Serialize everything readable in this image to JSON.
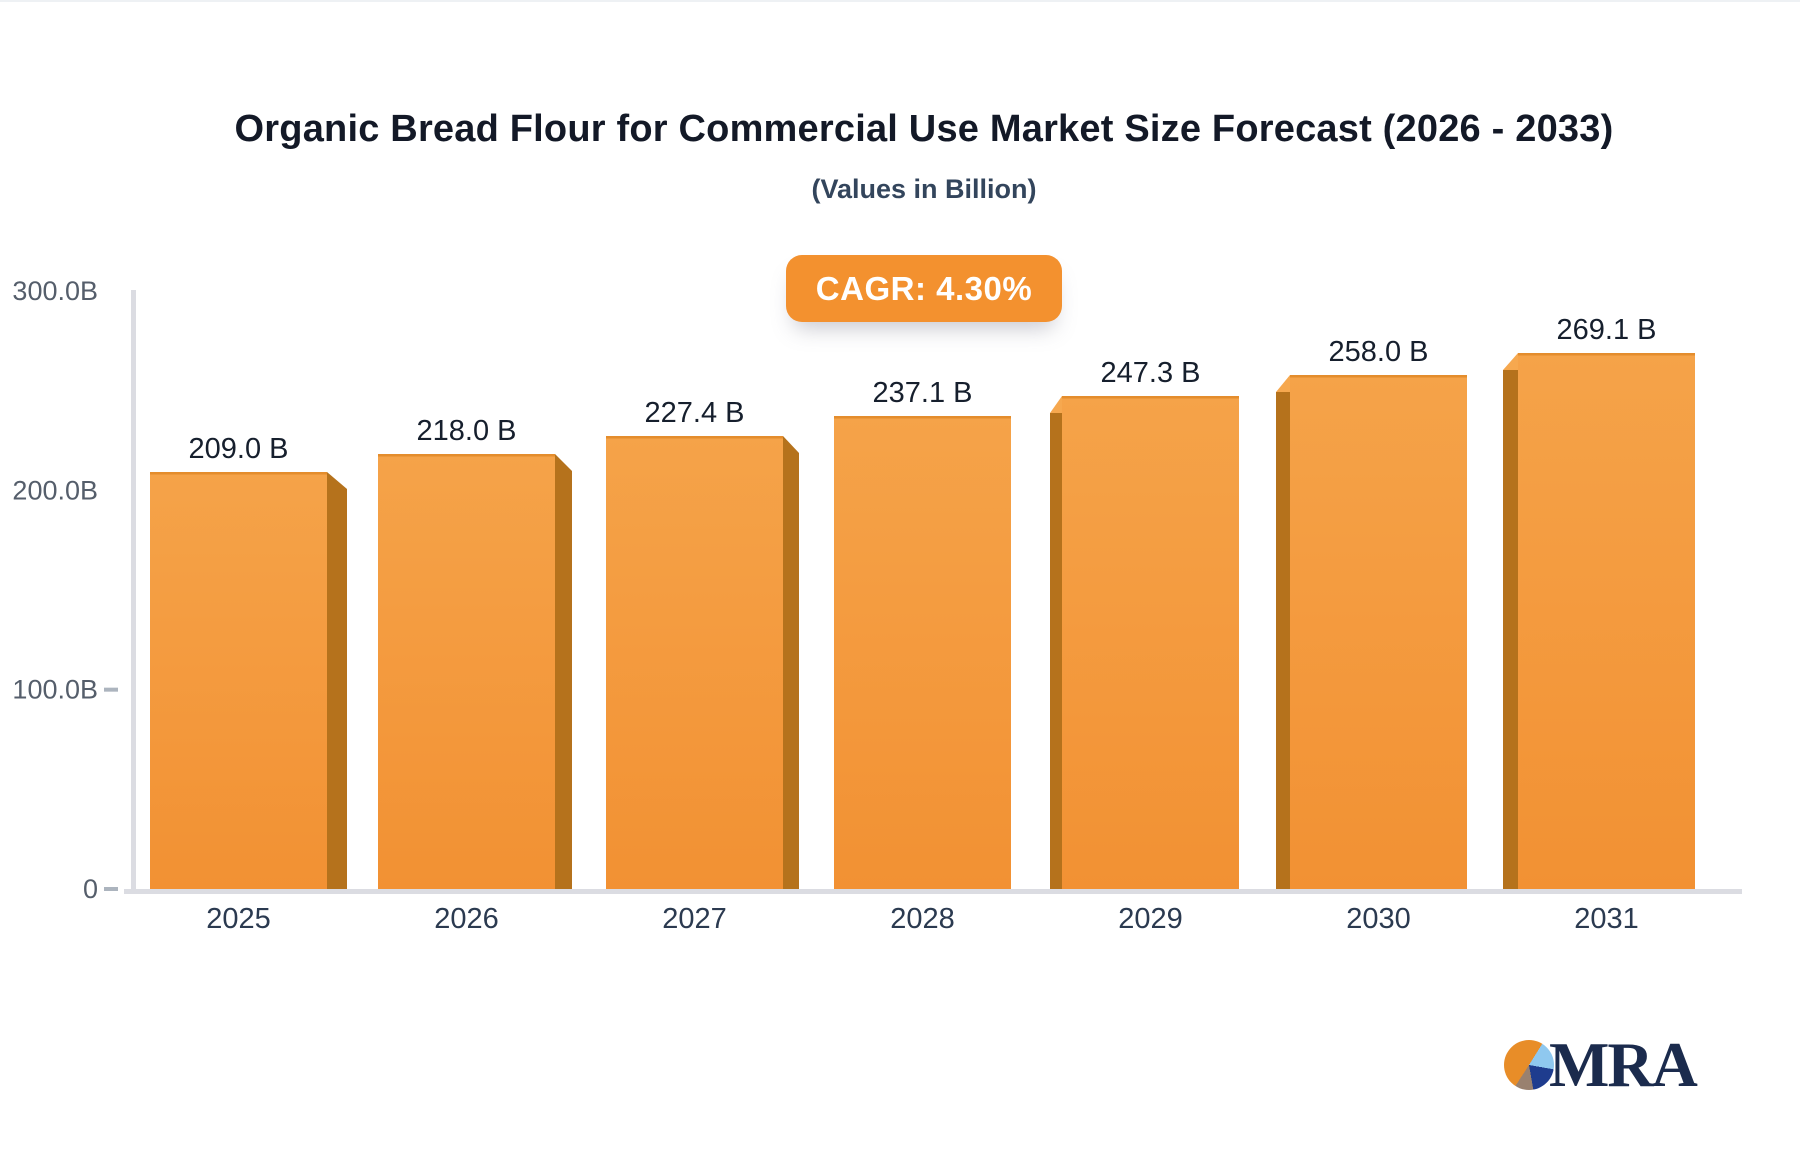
{
  "header": {
    "title": "Organic Bread Flour for Commercial Use Market Size Forecast (2026 - 2033)",
    "subtitle": "(Values in Billion)"
  },
  "badge": {
    "label": "CAGR: 4.30%",
    "bg_color": "#F3912F",
    "text_color": "#FFFFFF"
  },
  "chart_data": {
    "type": "bar",
    "title": "Organic Bread Flour for Commercial Use Market Size Forecast (2026 - 2033)",
    "subtitle": "(Values in Billion)",
    "unit": "Billion",
    "categories": [
      "2025",
      "2026",
      "2027",
      "2028",
      "2029",
      "2030",
      "2031"
    ],
    "values": [
      209.0,
      218.0,
      227.4,
      237.1,
      247.3,
      258.0,
      269.1
    ],
    "value_labels": [
      "209.0 B",
      "218.0 B",
      "227.4 B",
      "237.1 B",
      "247.3 B",
      "258.0 B",
      "269.1 B"
    ],
    "y_ticks": [
      {
        "v": 0,
        "label": "0",
        "tick": true
      },
      {
        "v": 100,
        "label": "100.0B",
        "tick": true
      },
      {
        "v": 200,
        "label": "200.0B",
        "tick": false
      },
      {
        "v": 300,
        "label": "300.0B",
        "tick": false
      }
    ],
    "ylim": [
      0,
      300
    ],
    "grid": false,
    "legend": false,
    "cagr": "CAGR: 4.30%",
    "colors": {
      "bar_top": "#F5A349",
      "bar_bottom": "#F29133",
      "bar_rim": "#E18A28",
      "bar_side": "#B5721C",
      "bar_bevel": "#F6A84F",
      "axis_line": "#DBDCE2",
      "tick": "#ACB4BE",
      "y_label": "#555E6B",
      "x_label": "#2B3A50",
      "value_label": "#161F2D"
    }
  },
  "logo": {
    "text": "MRA",
    "pie_colors": {
      "orange": "#E88D28",
      "light_blue": "#8FC8EF",
      "navy": "#1E3C8E",
      "brown": "#99816F"
    },
    "text_color": "#1B2B4D"
  }
}
